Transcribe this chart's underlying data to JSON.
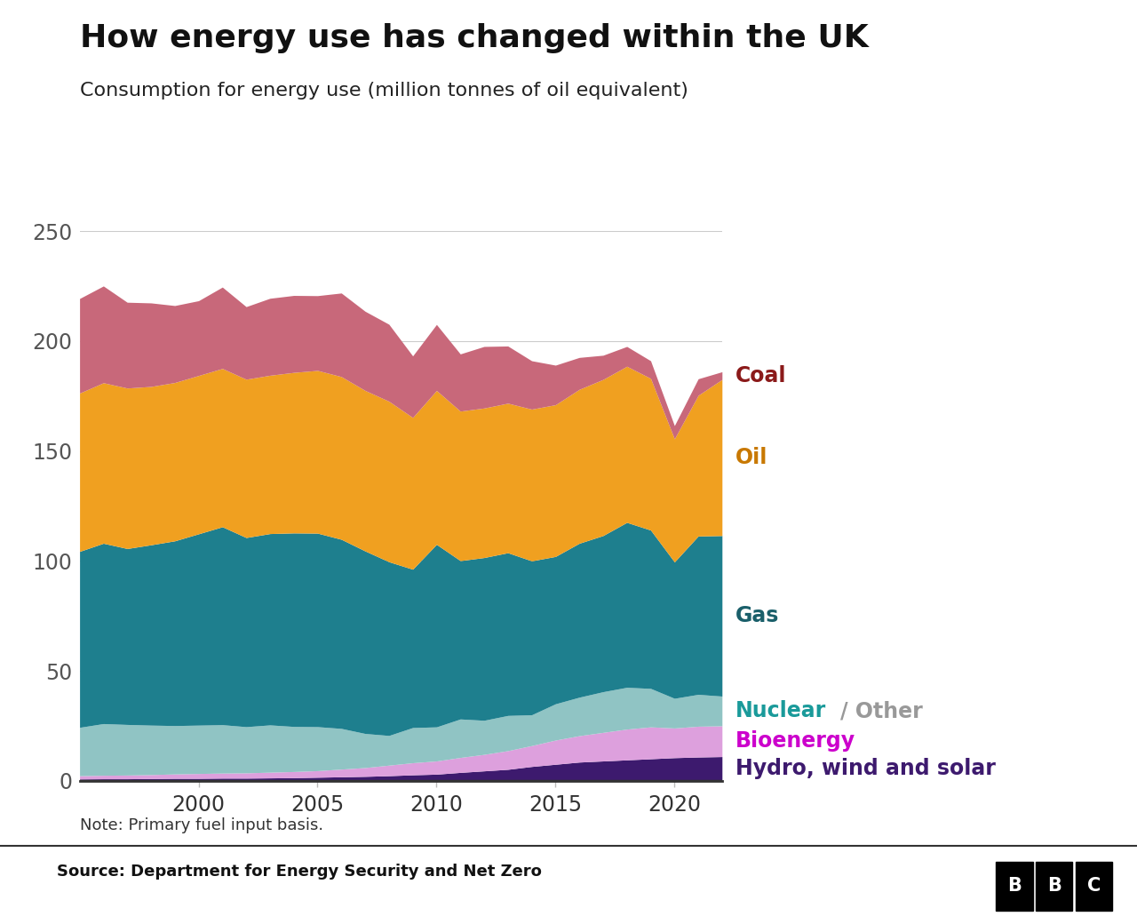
{
  "title": "How energy use has changed within the UK",
  "subtitle": "Consumption for energy use (million tonnes of oil equivalent)",
  "note": "Note: Primary fuel input basis.",
  "source": "Source: Department for Energy Security and Net Zero",
  "years": [
    1995,
    1996,
    1997,
    1998,
    1999,
    2000,
    2001,
    2002,
    2003,
    2004,
    2005,
    2006,
    2007,
    2008,
    2009,
    2010,
    2011,
    2012,
    2013,
    2014,
    2015,
    2016,
    2017,
    2018,
    2019,
    2020,
    2021,
    2022
  ],
  "hydro_wind_solar": [
    0.8,
    0.9,
    0.9,
    1.0,
    1.1,
    1.1,
    1.2,
    1.2,
    1.3,
    1.4,
    1.6,
    1.8,
    2.0,
    2.3,
    2.7,
    3.0,
    3.8,
    4.5,
    5.2,
    6.5,
    7.5,
    8.5,
    9.0,
    9.5,
    10.0,
    10.5,
    10.8,
    11.0
  ],
  "bioenergy": [
    1.5,
    1.6,
    1.7,
    1.8,
    2.0,
    2.2,
    2.3,
    2.4,
    2.6,
    2.8,
    3.0,
    3.5,
    4.0,
    4.8,
    5.5,
    6.0,
    6.8,
    7.5,
    8.5,
    9.5,
    11.0,
    12.0,
    13.0,
    14.0,
    14.5,
    13.5,
    14.0,
    14.0
  ],
  "nuclear_other": [
    22.0,
    23.5,
    23.0,
    22.5,
    22.0,
    22.0,
    22.0,
    21.0,
    21.5,
    20.5,
    20.0,
    18.5,
    15.5,
    13.5,
    16.0,
    15.5,
    17.5,
    15.5,
    16.0,
    14.0,
    16.5,
    17.5,
    18.5,
    19.0,
    17.5,
    13.5,
    14.5,
    13.5
  ],
  "gas": [
    80.0,
    82.0,
    80.0,
    82.0,
    84.0,
    87.0,
    90.0,
    86.0,
    87.0,
    88.0,
    88.0,
    86.0,
    83.0,
    79.0,
    72.0,
    83.0,
    72.0,
    74.0,
    74.0,
    70.0,
    67.0,
    70.0,
    71.0,
    75.0,
    72.0,
    62.0,
    72.0,
    73.0
  ],
  "oil": [
    72.0,
    73.0,
    73.0,
    72.0,
    72.0,
    72.0,
    72.0,
    72.0,
    72.0,
    73.0,
    74.0,
    74.0,
    73.0,
    73.0,
    69.0,
    70.0,
    68.0,
    68.0,
    68.0,
    69.0,
    69.0,
    70.0,
    71.0,
    71.0,
    69.0,
    56.0,
    64.0,
    71.0
  ],
  "coal": [
    43.0,
    44.0,
    39.0,
    38.0,
    35.0,
    34.0,
    37.0,
    33.0,
    35.0,
    35.0,
    34.0,
    38.0,
    36.0,
    35.0,
    28.0,
    30.0,
    26.0,
    28.0,
    26.0,
    22.0,
    18.0,
    14.5,
    11.0,
    9.0,
    8.0,
    6.0,
    7.5,
    3.5
  ],
  "colors": {
    "hydro_wind_solar": "#3d1a6e",
    "bioenergy": "#dda0dd",
    "nuclear_other": "#90c4c4",
    "gas": "#1e7f8e",
    "oil": "#f0a020",
    "coal": "#c8687a"
  },
  "label_colors": {
    "coal": "#8b1a1a",
    "oil": "#c87800",
    "gas": "#1a5f6a",
    "nuclear": "#1a9a9a",
    "other": "#999999",
    "bioenergy": "#cc00cc",
    "hydro": "#3d1a6e"
  },
  "ylim": [
    0,
    250
  ],
  "yticks": [
    0,
    50,
    100,
    150,
    200,
    250
  ],
  "xticks": [
    2000,
    2005,
    2010,
    2015,
    2020
  ]
}
